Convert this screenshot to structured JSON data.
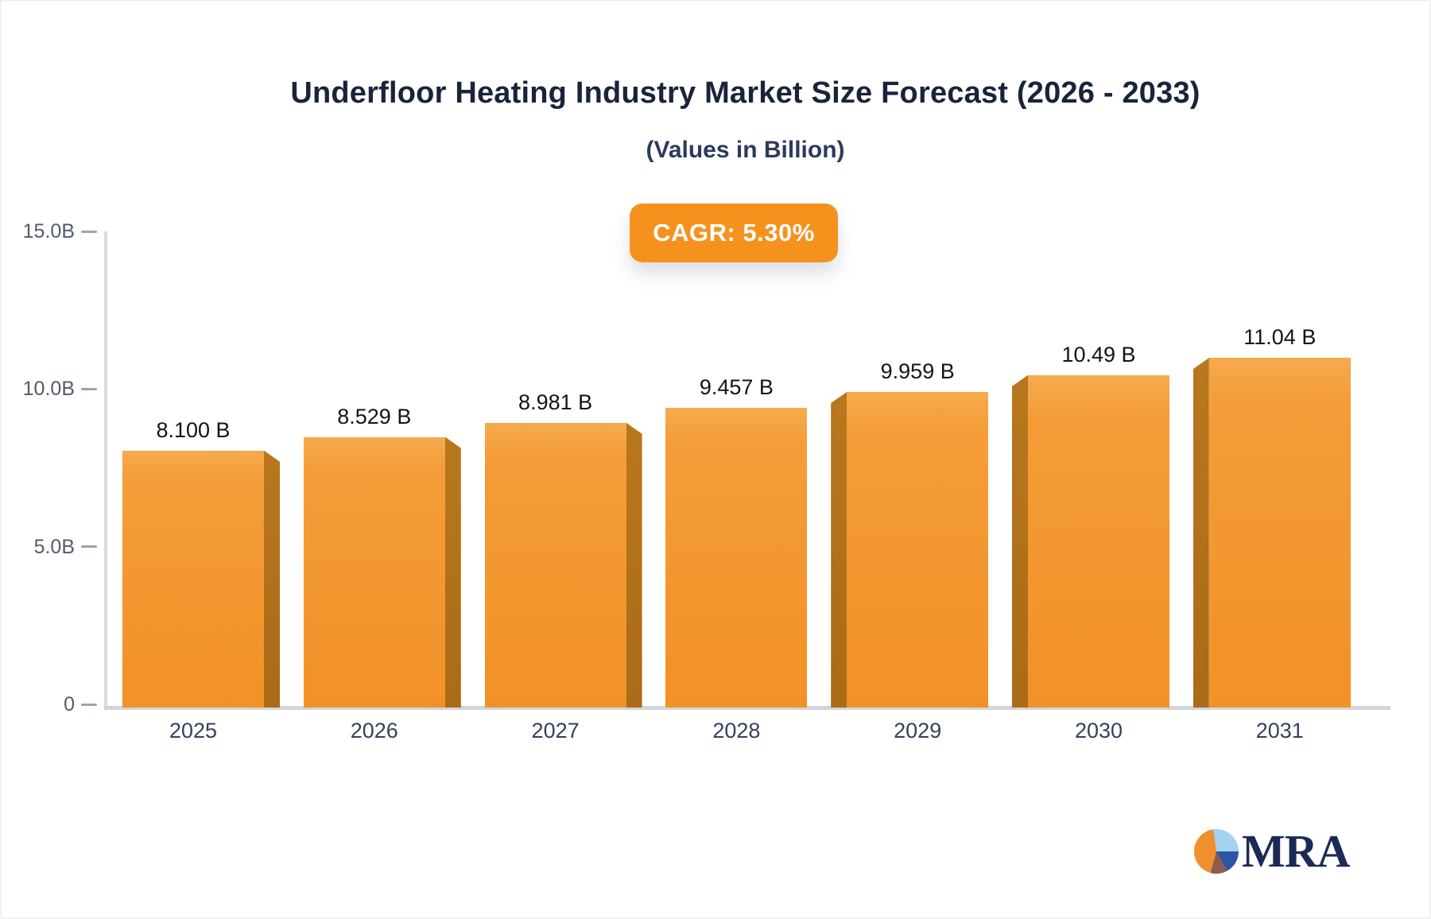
{
  "header": {
    "title": "Underfloor Heating Industry Market Size Forecast (2026 - 2033)",
    "subtitle": "(Values in Billion)"
  },
  "badge": {
    "label": "CAGR: 5.30%",
    "color": "#f5921e"
  },
  "chart_data": {
    "type": "bar",
    "title": "Underfloor Heating Industry Market Size Forecast (2026 - 2033)",
    "subtitle": "(Values in Billion)",
    "categories": [
      "2025",
      "2026",
      "2027",
      "2028",
      "2029",
      "2030",
      "2031"
    ],
    "values": [
      8.1,
      8.529,
      8.981,
      9.457,
      9.959,
      10.49,
      11.04
    ],
    "value_labels": [
      "8.100 B",
      "8.529 B",
      "8.981 B",
      "9.457 B",
      "9.959 B",
      "10.49 B",
      "11.04 B"
    ],
    "xlabel": "",
    "ylabel": "",
    "ylim": [
      0,
      15
    ],
    "yticks": [
      {
        "label": "15.0B",
        "value": 15
      },
      {
        "label": "10.0B",
        "value": 10
      },
      {
        "label": "5.0B",
        "value": 5
      },
      {
        "label": "0",
        "value": 0
      }
    ],
    "grid": false,
    "legend": false,
    "colors": {
      "bar_top": "#f6aa4f",
      "bar_mid": "#f49d38",
      "bar_bottom": "#f29127",
      "bar_side": "#b9771d",
      "bar_side_dark": "#aa6b18",
      "axis": "#d6d8de",
      "tick_text": "#515c6b",
      "category_text": "#33415e",
      "value_text": "#10141c"
    }
  },
  "logo": {
    "text": "MRA",
    "icon": "pie-chart-logo-icon",
    "pie_colors": {
      "light_blue": "#a3d2ef",
      "dark_blue": "#2a57a5",
      "brown": "#8b5c51",
      "orange": "#ef8f2d"
    },
    "text_color": "#1b2a55"
  }
}
